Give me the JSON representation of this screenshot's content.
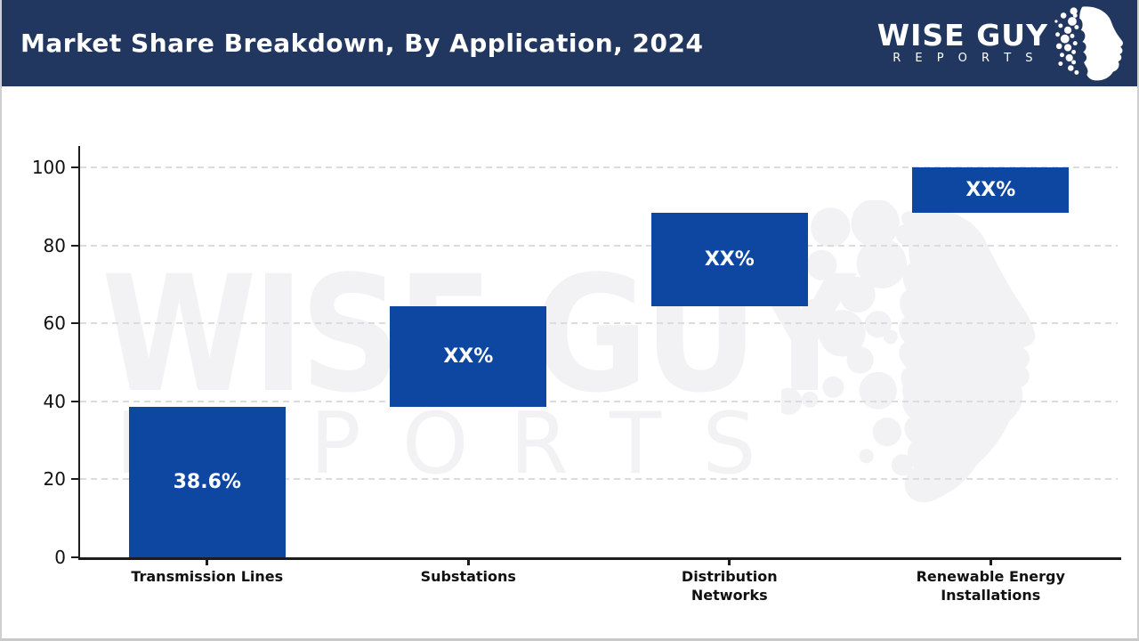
{
  "header": {
    "title": "Market Share Breakdown, By Application, 2024",
    "bg_color": "#213760",
    "brand": {
      "line1": "WISE GUY",
      "line2": "R E P O R T S",
      "face_icon": "dotted-head-profile"
    }
  },
  "watermark": {
    "line1": "WISE GUY",
    "line2": "R E P O R T S",
    "face_icon": "dotted-head-profile",
    "color": "#f2f2f4"
  },
  "chart_data": {
    "type": "bar",
    "subtype": "waterfall",
    "title": "Market Share Breakdown, By Application, 2024",
    "categories": [
      "Transmission Lines",
      "Substations",
      "Distribution\nNetworks",
      "Renewable Energy\nInstallations"
    ],
    "series": [
      {
        "name": "Market share (%)",
        "segments": [
          {
            "category": "Transmission Lines",
            "start": 0,
            "end": 38.6,
            "label": "38.6%"
          },
          {
            "category": "Substations",
            "start": 38.6,
            "end": 64.4,
            "label": "XX%"
          },
          {
            "category": "Distribution Networks",
            "start": 64.4,
            "end": 88.4,
            "label": "XX%"
          },
          {
            "category": "Renewable Energy Installations",
            "start": 88.4,
            "end": 100,
            "label": "XX%"
          }
        ]
      }
    ],
    "ylim": [
      0,
      100
    ],
    "yticks": [
      0,
      20,
      40,
      60,
      80,
      100
    ],
    "grid": "horizontal-dashed",
    "legend": "none",
    "bar_color": "#0d47a1",
    "bar_label_color": "#ffffff",
    "gridline_color": "#dcdcdc",
    "axis_color": "#1c1c1c"
  }
}
